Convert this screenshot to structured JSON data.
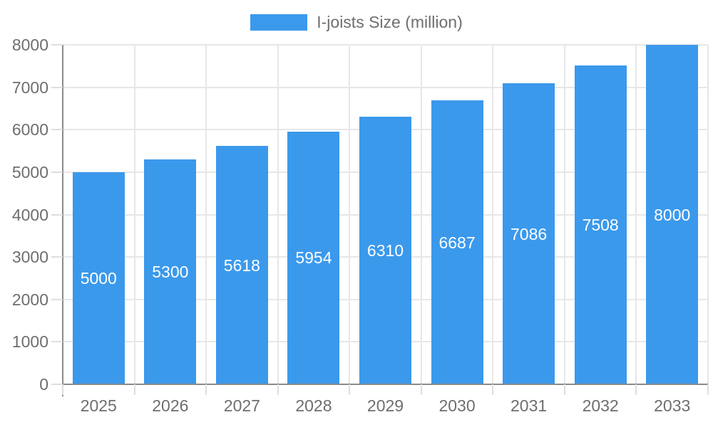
{
  "legend": {
    "label": "I-joists Size (million)"
  },
  "chart_data": {
    "type": "bar",
    "title": "",
    "categories": [
      "2025",
      "2026",
      "2027",
      "2028",
      "2029",
      "2030",
      "2031",
      "2032",
      "2033"
    ],
    "values": [
      5000,
      5300,
      5618,
      5954,
      6310,
      6687,
      7086,
      7508,
      8000
    ],
    "series": [
      {
        "name": "I-joists Size (million)",
        "values": [
          5000,
          5300,
          5618,
          5954,
          6310,
          6687,
          7086,
          7508,
          8000
        ]
      }
    ],
    "value_labels": [
      "5000",
      "5300",
      "5618",
      "5954",
      "6310",
      "6687",
      "7086",
      "7508",
      "8000"
    ],
    "xlabel": "",
    "ylabel": "",
    "ylim": [
      0,
      8000
    ],
    "ytick_step": 1000,
    "ytick_labels": [
      "0",
      "1000",
      "2000",
      "3000",
      "4000",
      "5000",
      "6000",
      "7000",
      "8000"
    ],
    "grid": true,
    "legend_position": "top"
  },
  "colors": {
    "background": "#FFFFFF",
    "bar": "#3B99EC",
    "legend_swatch": "#3B99EC",
    "axis_line": "#8A8A8A",
    "gridline": "#E7E7E7",
    "tick": "#DEDEDE",
    "axis_label": "#6E6E6E",
    "legend_text": "#6E6E6E",
    "value_label": "#FFFFFF"
  }
}
